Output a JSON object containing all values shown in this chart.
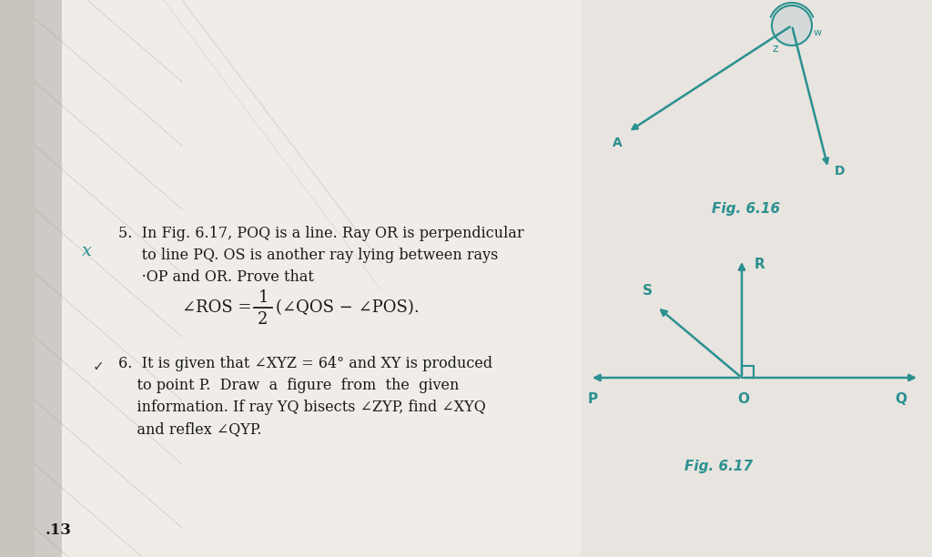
{
  "bg_color": "#c8c4be",
  "page_bg_left": "#f0ede8",
  "page_bg_right": "#e8e4df",
  "teal": "#2a9090",
  "text_color": "#1a1a1a",
  "fig616_caption": "Fig. 6.16",
  "fig617_caption": "Fig. 6.17",
  "page_num": ".13",
  "line5_1": "5.  In Fig. 6.17, POQ is a line. Ray OR is perpendicular",
  "line5_2": "     to line PQ. OS is another ray lying between rays",
  "line5_3": "     ·OP and OR. Prove that",
  "line6_1": "6.  It is given that ∠XYZ = 64° and XY is produced",
  "line6_2": "    to point P.  Draw  a  figure  from  the  given",
  "line6_3": "    information. If ray YQ bisects ∠ZYP, find ∠XYQ",
  "line6_4": "    and reflex ∠QYP."
}
